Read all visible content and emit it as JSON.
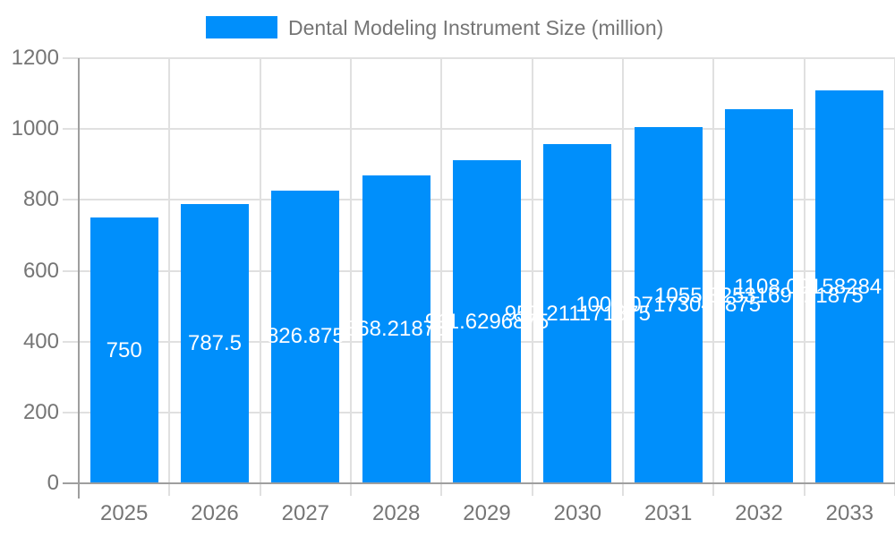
{
  "chart_data": {
    "type": "bar",
    "title": "Dental Modeling Instrument Size (million)",
    "categories": [
      "2025",
      "2026",
      "2027",
      "2028",
      "2029",
      "2030",
      "2031",
      "2032",
      "2033"
    ],
    "series": [
      {
        "name": "Dental Modeling Instrument Size (million)",
        "values": [
          750,
          787.5,
          826.875,
          868.21875,
          911.6296875,
          957.211171875,
          1005.07173046875,
          1055.3253169921875,
          1108.091582841797
        ],
        "value_labels": [
          "750",
          "787.5",
          "826.875",
          "868.21875",
          "911.6296875",
          "957.211171875",
          "1005.07173046875",
          "1055.3253169921875",
          "1108.091582841796875"
        ]
      }
    ],
    "xlabel": "",
    "ylabel": "",
    "ylim": [
      0,
      1200
    ],
    "y_ticks": [
      0,
      200,
      400,
      600,
      800,
      1000,
      1200
    ],
    "y_tick_labels": [
      "0",
      "200",
      "400",
      "600",
      "800",
      "1000",
      "1200"
    ],
    "grid": true,
    "legend_position": "top",
    "data_labels": "inside-center",
    "colors": {
      "bar": "#008FFB",
      "bar_label": "#FFFFFF",
      "axis_text": "#757575",
      "grid_line": "#E0E0E0",
      "axis_line": "#9E9E9E",
      "background": "#FFFFFF"
    }
  }
}
